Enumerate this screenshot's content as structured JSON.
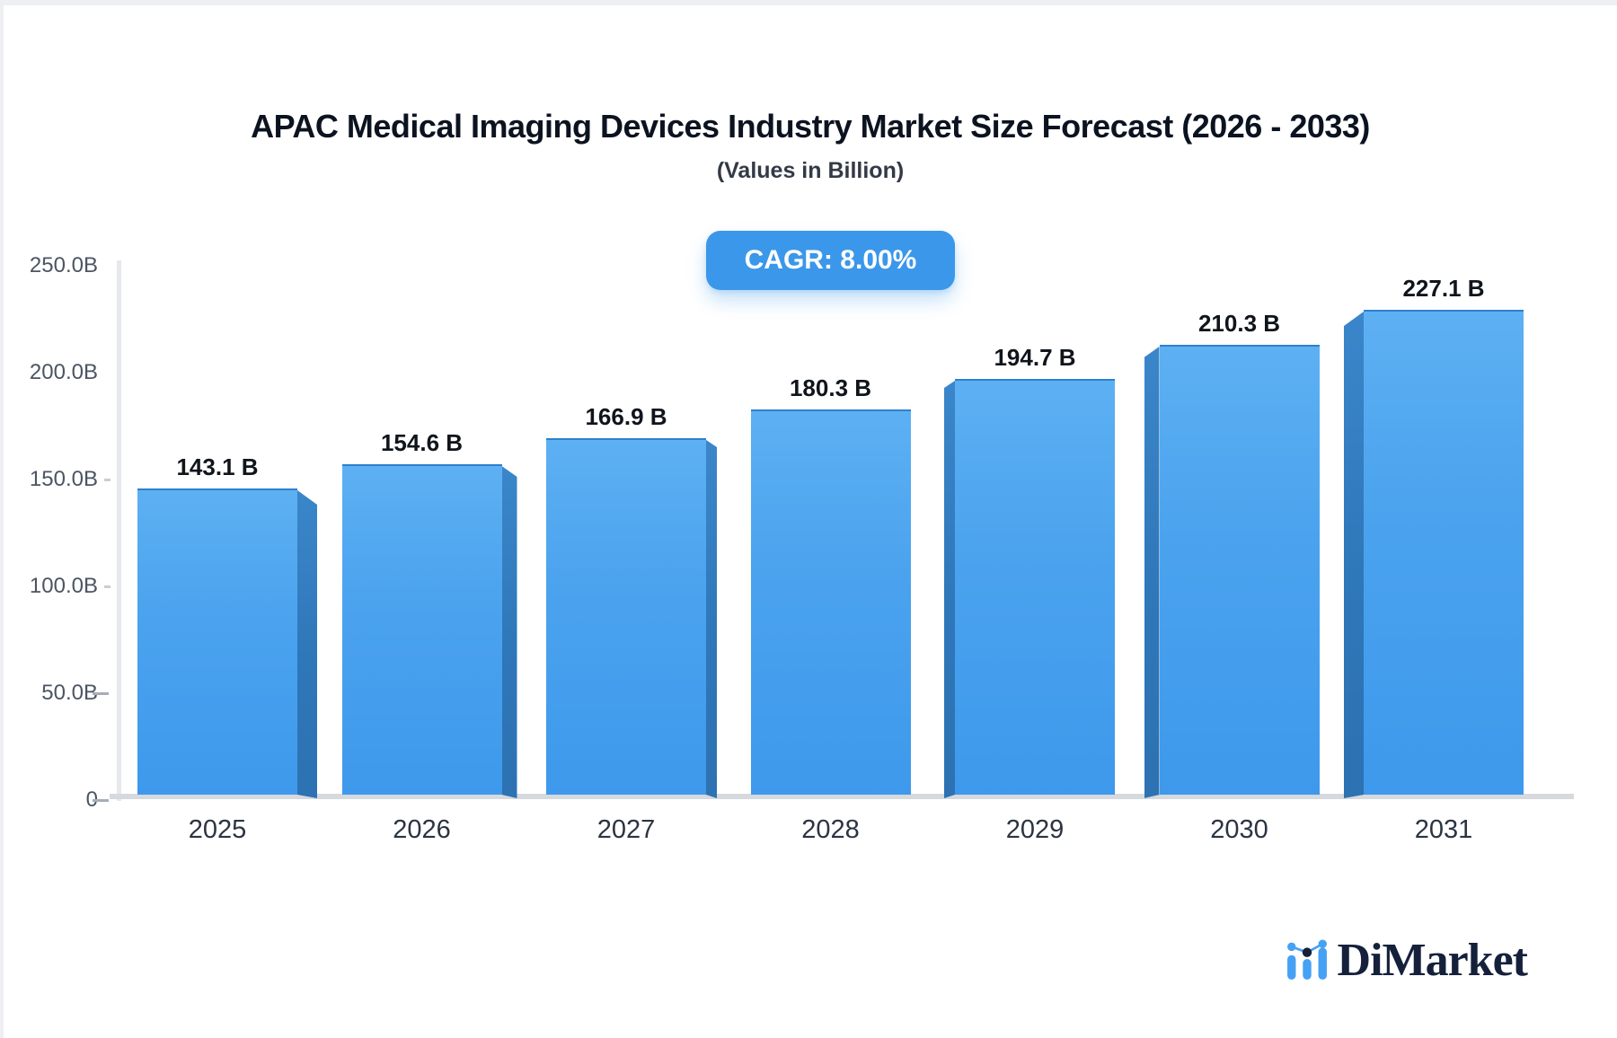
{
  "title": "APAC Medical Imaging Devices Industry Market Size Forecast (2026 - 2033)",
  "subtitle": "(Values in Billion)",
  "badge": {
    "label": "CAGR: 8.00%"
  },
  "brand": {
    "name": "DiMarket"
  },
  "colors": {
    "accent_blue": "#3b97ea",
    "bar_face_top": "#5db0f2",
    "bar_face_bottom": "#3e99ec",
    "bar_side": "#2e77b9",
    "logo_navy": "#15213b",
    "logo_blue": "#45a1f4"
  },
  "chart_data": {
    "type": "bar",
    "title": "APAC Medical Imaging Devices Industry Market Size Forecast (2026 - 2033)",
    "subtitle": "(Values in Billion)",
    "categories": [
      "2025",
      "2026",
      "2027",
      "2028",
      "2029",
      "2030",
      "2031"
    ],
    "values": [
      143.1,
      154.6,
      166.9,
      180.3,
      194.7,
      210.3,
      227.1
    ],
    "value_labels": [
      "143.1 B",
      "154.6 B",
      "166.9 B",
      "180.3 B",
      "194.7 B",
      "210.3 B",
      "227.1 B"
    ],
    "xlabel": "",
    "ylabel": "Values in Billion",
    "ylim": [
      0,
      250
    ],
    "y_ticks": [
      {
        "label": "250.0B",
        "value": 250
      },
      {
        "label": "200.0B",
        "value": 200
      },
      {
        "label": "150.0B",
        "value": 150
      },
      {
        "label": "100.0B",
        "value": 100
      },
      {
        "label": "50.0B",
        "value": 50
      },
      {
        "label": "0",
        "value": 0
      }
    ],
    "annotations": [
      "CAGR: 8.00%"
    ],
    "legend": "none",
    "grid": "off"
  }
}
